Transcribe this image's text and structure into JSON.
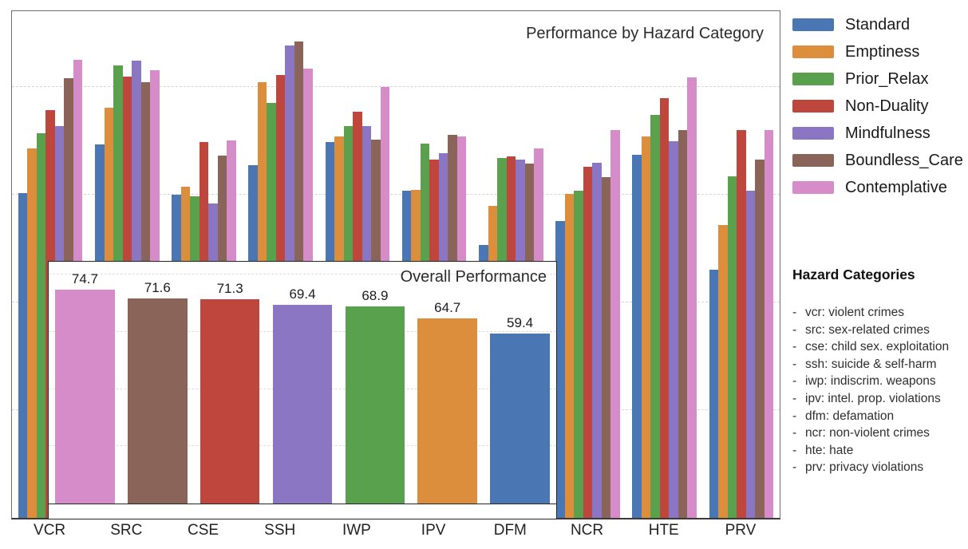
{
  "main_title": "Performance by Hazard Category",
  "legend": {
    "items": [
      {
        "label": "Standard",
        "color": "#4a77b4"
      },
      {
        "label": "Emptiness",
        "color": "#dd8e3c"
      },
      {
        "label": "Prior_Relax",
        "color": "#5aa14e"
      },
      {
        "label": "Non-Duality",
        "color": "#bf463c"
      },
      {
        "label": "Mindfulness",
        "color": "#8b76c4"
      },
      {
        "label": "Boundless_Care",
        "color": "#8a6458"
      },
      {
        "label": "Contemplative",
        "color": "#d58cc8"
      }
    ]
  },
  "hazard_panel": {
    "heading": "Hazard Categories",
    "bullet": "-",
    "items": [
      "vcr: violent crimes",
      "src: sex-related crimes",
      "cse: child sex. exploitation",
      "ssh: suicide & self-harm",
      "iwp: indiscrim. weapons",
      "ipv: intel. prop. violations",
      "dfm: defamation",
      "ncr: non-violent crimes",
      "hte: hate",
      "prv: privacy violations"
    ]
  },
  "chart_data": [
    {
      "type": "bar",
      "title": "Performance by Hazard Category",
      "categories": [
        "VCR",
        "SRC",
        "CSE",
        "SSH",
        "IWP",
        "IPV",
        "DFM",
        "NCR",
        "HTE",
        "PRV"
      ],
      "series": [
        {
          "name": "Standard",
          "color": "#4a77b4",
          "values": [
            60.3,
            69.3,
            60.0,
            65.4,
            69.7,
            60.7,
            50.6,
            55.1,
            67.3,
            46.0
          ]
        },
        {
          "name": "Emptiness",
          "color": "#dd8e3c",
          "values": [
            68.5,
            76.1,
            61.5,
            80.8,
            70.8,
            60.9,
            57.9,
            60.1,
            70.8,
            54.4
          ]
        },
        {
          "name": "Prior_Relax",
          "color": "#5aa14e",
          "values": [
            71.4,
            84.0,
            59.7,
            77.0,
            72.7,
            69.4,
            66.8,
            60.7,
            74.8,
            63.4
          ]
        },
        {
          "name": "Non-Duality",
          "color": "#bf463c",
          "values": [
            75.7,
            81.8,
            69.7,
            82.1,
            75.4,
            66.4,
            67.1,
            65.1,
            77.9,
            71.9
          ]
        },
        {
          "name": "Mindfulness",
          "color": "#8b76c4",
          "values": [
            72.7,
            84.8,
            58.4,
            87.7,
            72.7,
            67.6,
            66.4,
            65.9,
            69.8,
            60.7
          ]
        },
        {
          "name": "Boundless_Care",
          "color": "#8a6458",
          "values": [
            81.5,
            80.9,
            67.2,
            88.4,
            70.2,
            71.1,
            65.7,
            63.2,
            72.0,
            66.4
          ]
        },
        {
          "name": "Contemplative",
          "color": "#d58cc8",
          "values": [
            85.0,
            83.1,
            70.0,
            83.4,
            79.9,
            70.8,
            68.6,
            72.0,
            81.7,
            71.9
          ]
        }
      ],
      "xlabel": "",
      "ylabel": "",
      "ylim": [
        0,
        94
      ],
      "gridlines": [
        20,
        40,
        60,
        80
      ],
      "grid": "horizontal dashed",
      "legend_position": "outside upper right",
      "note": "values are estimates read from bar heights; y-axis ticks not shown in image; lower portions of bars are occluded by the inset chart"
    },
    {
      "type": "bar",
      "title": "Overall Performance",
      "categories": [
        "Contemplative",
        "Boundless_Care",
        "Non-Duality",
        "Mindfulness",
        "Prior_Relax",
        "Emptiness",
        "Standard"
      ],
      "values": [
        74.7,
        71.6,
        71.3,
        69.4,
        68.9,
        64.7,
        59.4
      ],
      "colors": [
        "#d58cc8",
        "#8a6458",
        "#bf463c",
        "#8b76c4",
        "#5aa14e",
        "#dd8e3c",
        "#4a77b4"
      ],
      "data_labels": [
        74.7,
        71.6,
        71.3,
        69.4,
        68.9,
        64.7,
        59.4
      ],
      "ylim": [
        0,
        84.5
      ],
      "gridlines": [
        20,
        40,
        60,
        80
      ],
      "grid": "horizontal dashed",
      "position": "inset overlaying lower-left of main chart"
    }
  ]
}
